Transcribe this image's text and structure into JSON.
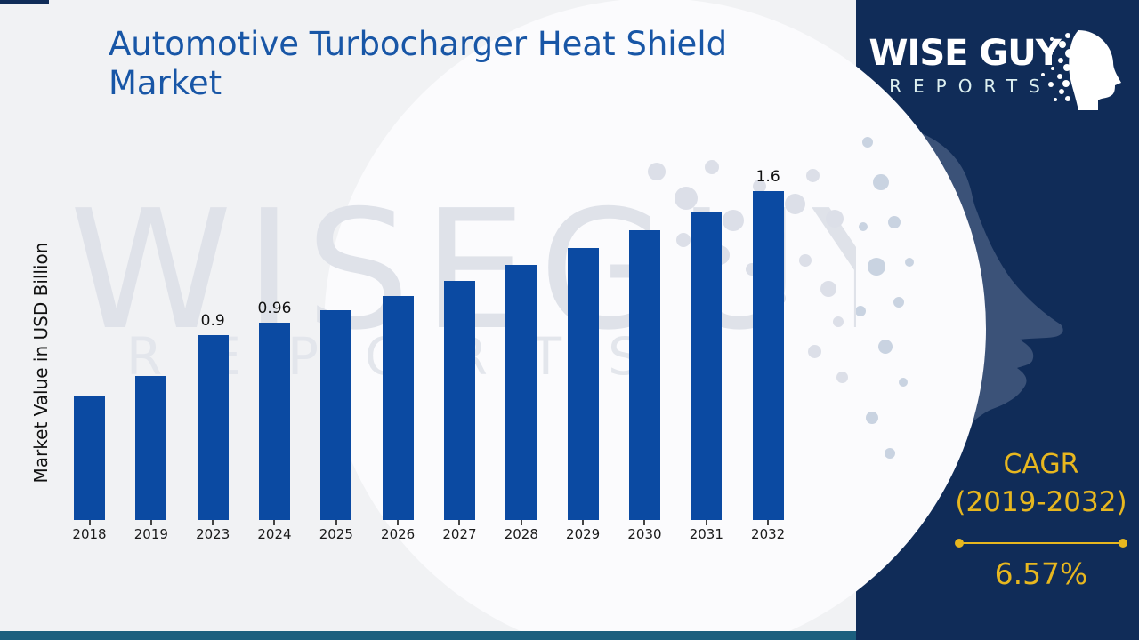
{
  "page": {
    "background": "#f1f2f4",
    "navy": "#102c58",
    "teal": "#1c5f7e",
    "gold": "#e7b71f",
    "bar_color": "#0b4aa2",
    "title_color": "#1856a6",
    "face_blue": "#3b5278"
  },
  "header": {
    "title": "Automotive Turbocharger Heat Shield Market"
  },
  "logo": {
    "line1": "WISE GUY",
    "line2": "REPORTS"
  },
  "watermark": {
    "line1": "WISEGUY",
    "line2": "REPORTS"
  },
  "cagr": {
    "label": "CAGR",
    "range": "(2019-2032)",
    "value": "6.57%"
  },
  "chart_data": {
    "type": "bar",
    "title": "Automotive Turbocharger Heat Shield Market",
    "xlabel": "",
    "ylabel": "Market Value in USD Billion",
    "categories": [
      "2018",
      "2019",
      "2023",
      "2024",
      "2025",
      "2026",
      "2027",
      "2028",
      "2029",
      "2030",
      "2031",
      "2032"
    ],
    "values": [
      0.6,
      0.7,
      0.9,
      0.96,
      1.02,
      1.09,
      1.16,
      1.24,
      1.32,
      1.41,
      1.5,
      1.6
    ],
    "data_labels": [
      null,
      null,
      "0.9",
      "0.96",
      null,
      null,
      null,
      null,
      null,
      null,
      null,
      "1.6"
    ],
    "ylim": [
      0,
      1.8
    ],
    "grid": false,
    "legend": null
  }
}
